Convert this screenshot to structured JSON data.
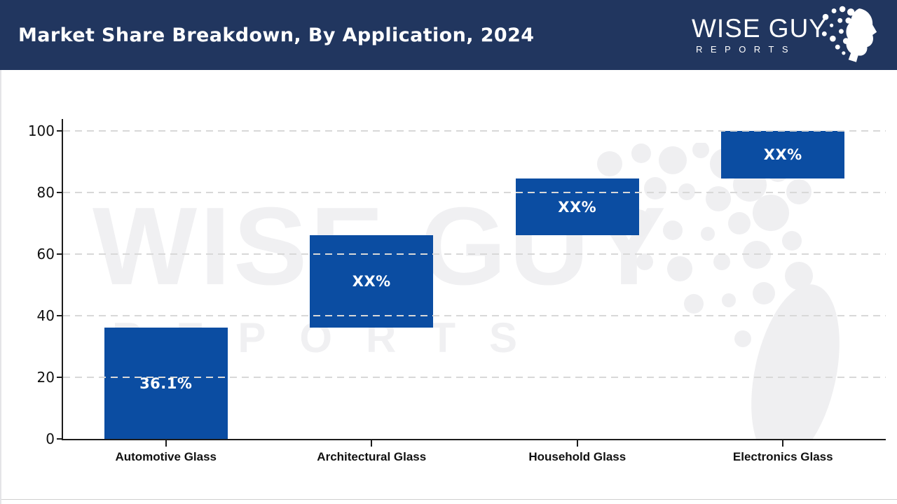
{
  "header": {
    "title": "Market Share Breakdown, By Application, 2024",
    "logo": {
      "line1": "WISE GUY",
      "line2": "REPORTS"
    }
  },
  "watermark": {
    "line1": "WISE GUY",
    "line2": "REPORTS"
  },
  "colors": {
    "header_bg": "#21365f",
    "bar_blue": "#0b4da2",
    "gridline": "#d8d8d8",
    "axis": "#1c1c1c",
    "bar_label": "#ffffff",
    "watermark": "#f0f0f2",
    "category_text": "#111111"
  },
  "chart_data": {
    "type": "bar",
    "subtype": "waterfall",
    "title": "Market Share Breakdown, By Application, 2024",
    "categories": [
      "Automotive Glass",
      "Architectural Glass",
      "Household Glass",
      "Electronics Glass"
    ],
    "segments": [
      {
        "category": "Automotive Glass",
        "from": 0,
        "to": 36.1,
        "label": "36.1%"
      },
      {
        "category": "Architectural Glass",
        "from": 36.1,
        "to": 66.1,
        "label": "XX%"
      },
      {
        "category": "Household Glass",
        "from": 66.1,
        "to": 84.5,
        "label": "XX%"
      },
      {
        "category": "Electronics Glass",
        "from": 84.5,
        "to": 100,
        "label": "XX%"
      }
    ],
    "xlabel": "",
    "ylabel": "",
    "ylim": [
      0,
      100
    ],
    "yticks": [
      0,
      20,
      40,
      60,
      80,
      100
    ],
    "grid": "horizontal-dashed",
    "gridlines_over_bars": true,
    "legend": "none"
  }
}
